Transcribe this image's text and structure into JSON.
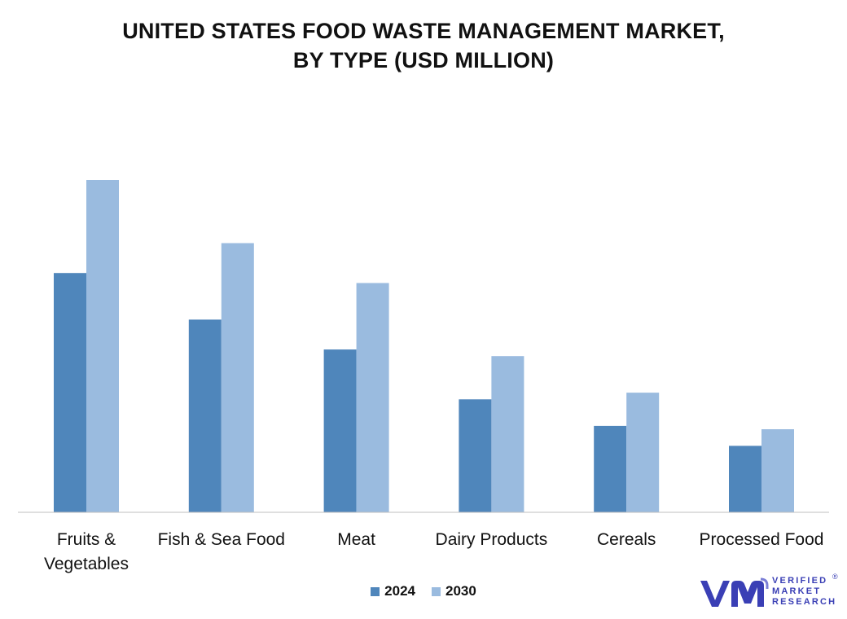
{
  "chart_data": {
    "type": "bar",
    "title_lines": [
      "UNITED STATES FOOD WASTE MANAGEMENT MARKET,",
      "BY TYPE (USD MILLION)"
    ],
    "categories": [
      "Fruits & Vegetables",
      "Fish & Sea Food",
      "Meat",
      "Dairy Products",
      "Cereals",
      "Processed Food"
    ],
    "category_label_lines": [
      [
        "Fruits &",
        "Vegetables"
      ],
      [
        "Fish & Sea Food"
      ],
      [
        "Meat"
      ],
      [
        "Dairy Products"
      ],
      [
        "Cereals"
      ],
      [
        "Processed Food"
      ]
    ],
    "series": [
      {
        "name": "2024",
        "color": "#4f86bb",
        "values": [
          0.72,
          0.58,
          0.49,
          0.34,
          0.26,
          0.2
        ]
      },
      {
        "name": "2030",
        "color": "#9abbdf",
        "values": [
          1.0,
          0.81,
          0.69,
          0.47,
          0.36,
          0.25
        ]
      }
    ],
    "ylim": [
      0,
      1
    ],
    "xlabel": "",
    "ylabel": "",
    "grid": false,
    "legend_position": "bottom-center",
    "value_note": "No y-axis or data labels shown; values are relative estimates with the tallest bar = 1.00"
  },
  "logo": {
    "lines": [
      "VERIFIED",
      "MARKET",
      "RESEARCH"
    ],
    "registered": "®",
    "brand_color": "#3a3fb5"
  }
}
